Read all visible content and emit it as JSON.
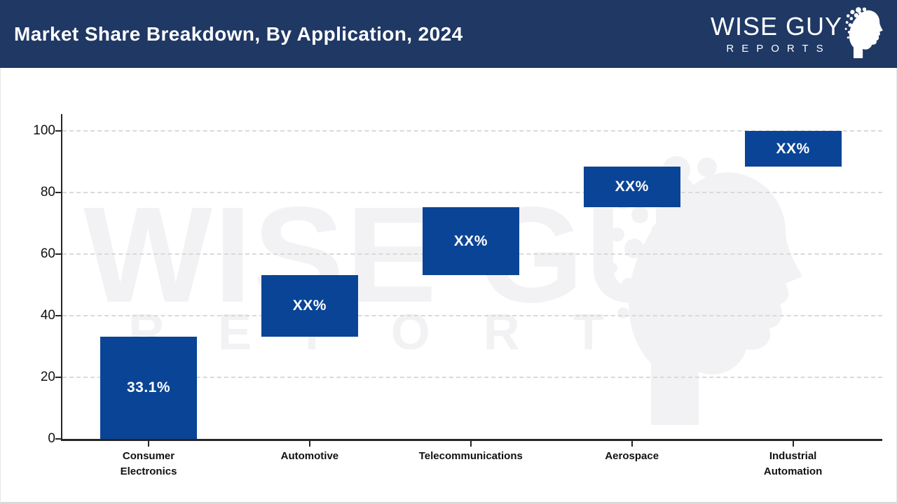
{
  "header": {
    "title": "Market Share Breakdown, By Application, 2024",
    "logo": {
      "line1": "WISE GUY",
      "line2": "REPORTS"
    }
  },
  "watermark": {
    "line1": "WISE GUY",
    "line2": "R E P O R T S"
  },
  "colors": {
    "header_bg": "#1f3864",
    "bar": "#0a4496",
    "grid": "#d9d9d9",
    "axis": "#262626",
    "bar_label_text": "#ffffff",
    "watermark": "#f2f2f4"
  },
  "chart_data": {
    "type": "bar",
    "subtype": "waterfall",
    "title": "Market Share Breakdown, By Application, 2024",
    "categories": [
      "Consumer Electronics",
      "Automotive",
      "Telecommunications",
      "Aerospace",
      "Industrial Automation"
    ],
    "segments": [
      {
        "category": "Consumer Electronics",
        "lines": [
          "Consumer",
          "Electronics"
        ],
        "start": 0,
        "end": 33.1,
        "label": "33.1%"
      },
      {
        "category": "Automotive",
        "lines": [
          "Automotive"
        ],
        "start": 33.1,
        "end": 53.2,
        "label": "XX%"
      },
      {
        "category": "Telecommunications",
        "lines": [
          "Telecommunications"
        ],
        "start": 53.2,
        "end": 75.2,
        "label": "XX%"
      },
      {
        "category": "Aerospace",
        "lines": [
          "Aerospace"
        ],
        "start": 75.2,
        "end": 88.4,
        "label": "XX%"
      },
      {
        "category": "Industrial Automation",
        "lines": [
          "Industrial",
          "Automation"
        ],
        "start": 88.4,
        "end": 100,
        "label": "XX%"
      }
    ],
    "ylim": [
      0,
      100
    ],
    "yticks": [
      0,
      20,
      40,
      60,
      80,
      100
    ],
    "xlabel": "",
    "ylabel": "",
    "grid": "dashed-horizontal",
    "legend": "none"
  }
}
